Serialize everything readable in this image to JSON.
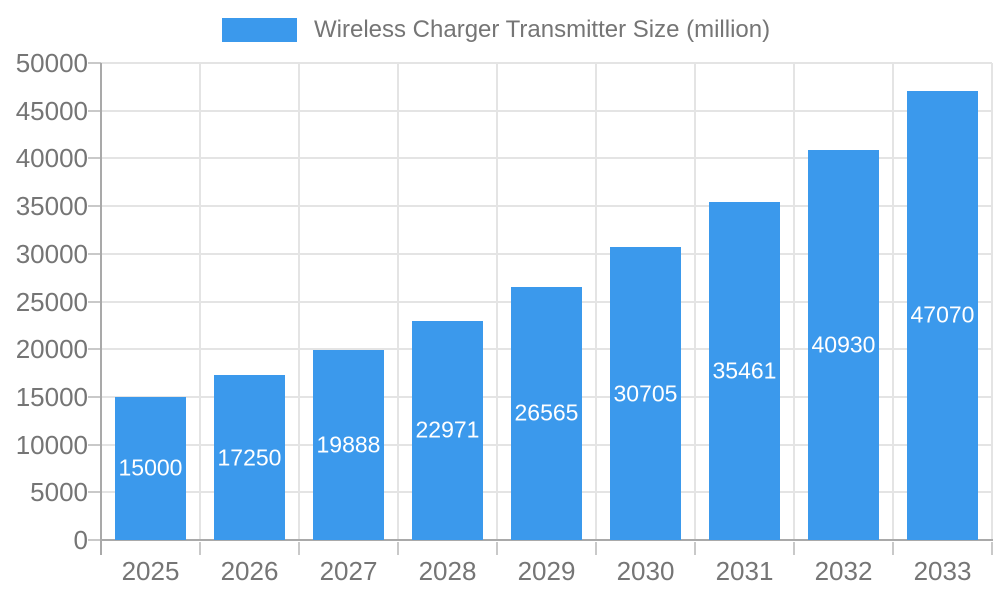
{
  "chart_data": {
    "type": "bar",
    "title": "Wireless Charger Transmitter Size (million)",
    "legend_entries": [
      "Wireless Charger Transmitter Size (million)"
    ],
    "legend_position": "top",
    "categories": [
      "2025",
      "2026",
      "2027",
      "2028",
      "2029",
      "2030",
      "2031",
      "2032",
      "2033"
    ],
    "values": [
      15000,
      17250,
      19888,
      22971,
      26565,
      30705,
      35461,
      40930,
      47070
    ],
    "xlabel": "",
    "ylabel": "",
    "ylim": [
      0,
      50000
    ],
    "yticks": [
      0,
      5000,
      10000,
      15000,
      20000,
      25000,
      30000,
      35000,
      40000,
      45000,
      50000
    ],
    "grid": true,
    "value_labels_inside_bars": true,
    "colors": {
      "bar": "#3B99EC",
      "bar_label": "#FFFFFF",
      "axis_text": "#757575",
      "axis_line": "#A9A9A9",
      "gridline": "#E4E4E4",
      "tick": "#C9C9C9",
      "background": "#FFFFFF"
    }
  }
}
